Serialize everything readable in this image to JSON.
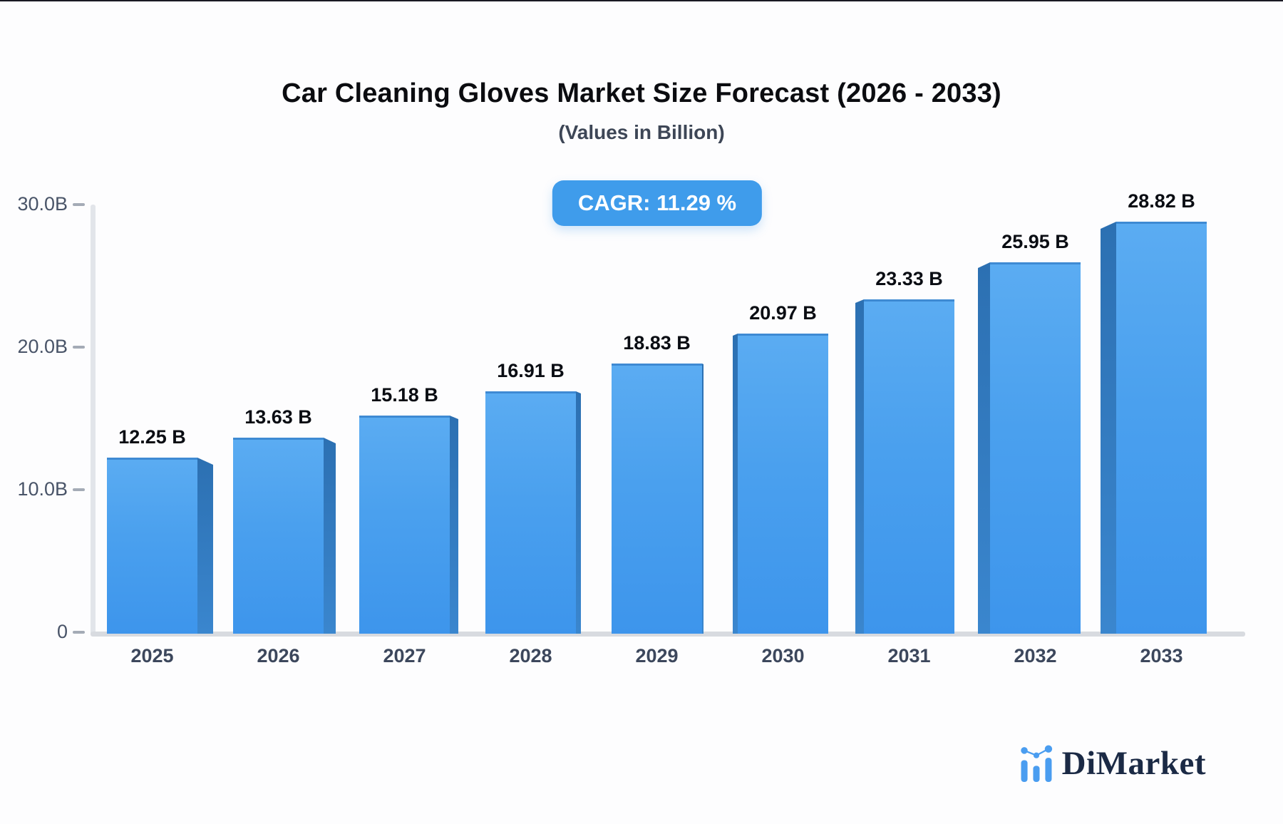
{
  "header": {
    "title": "Car Cleaning Gloves Market Size Forecast (2026 - 2033)",
    "subtitle": "(Values in Billion)"
  },
  "badge": {
    "label": "CAGR: 11.29 %"
  },
  "chart_data": {
    "type": "bar",
    "title": "Car Cleaning Gloves Market Size Forecast (2026 - 2033)",
    "subtitle": "(Values in Billion)",
    "annotation": "CAGR: 11.29 %",
    "categories": [
      "2025",
      "2026",
      "2027",
      "2028",
      "2029",
      "2030",
      "2031",
      "2032",
      "2033"
    ],
    "values": [
      12.25,
      13.63,
      15.18,
      16.91,
      18.83,
      20.97,
      23.33,
      25.95,
      28.82
    ],
    "value_labels": [
      "12.25 B",
      "13.63 B",
      "15.18 B",
      "16.91 B",
      "18.83 B",
      "20.97 B",
      "23.33 B",
      "25.95 B",
      "28.82 B"
    ],
    "xlabel": "",
    "ylabel": "",
    "ylim": [
      0,
      30
    ],
    "yticks": [
      {
        "value": 30,
        "label": "30.0B"
      },
      {
        "value": 20,
        "label": "20.0B"
      },
      {
        "value": 10,
        "label": "10.0B"
      },
      {
        "value": 0,
        "label": "0"
      }
    ],
    "grid": false,
    "legend": "none",
    "bar_style": "3d-extruded",
    "colors": {
      "bar_front_top": "#5bacf2",
      "bar_front_bottom": "#3d95ec",
      "bar_side": "#2e76b8",
      "axis_line": "#dcdfe4",
      "tick_text": "#495468",
      "category_text": "#3c475c",
      "value_text": "#0a0d13",
      "badge_background": "#3f9ceb",
      "badge_text": "#ffffff"
    }
  },
  "logo": {
    "text": "DiMarket",
    "icon": "bar-chart-trend-icon",
    "text_color": "#1b2a45",
    "icon_color": "#4a9df0"
  }
}
